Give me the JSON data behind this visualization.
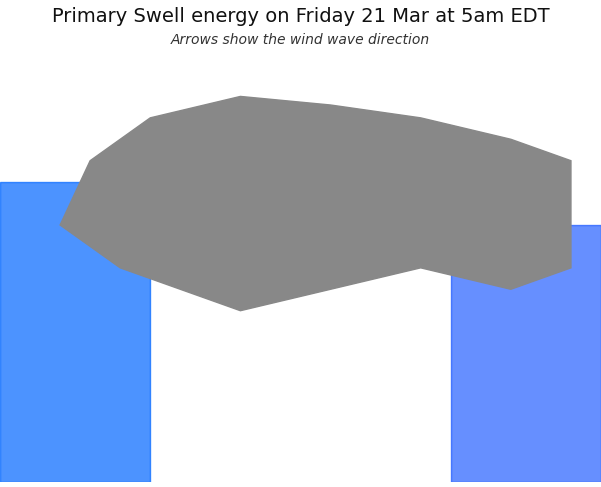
{
  "title": "Primary Swell energy on Friday 21 Mar at 5am EDT",
  "subtitle": "Arrows show the wind wave direction",
  "title_fontsize": 14,
  "subtitle_fontsize": 10,
  "background_color": "#ffffff",
  "header_bg": "#f0f0f0",
  "fig_width": 6.01,
  "fig_height": 4.87,
  "dpi": 100,
  "map_bg": "#000000",
  "land_color": "#888888",
  "ocean_dark": "#000005",
  "swell_low_color": "#001133",
  "swell_high_color": "#00ffff",
  "arrow_color": "#00dddd"
}
